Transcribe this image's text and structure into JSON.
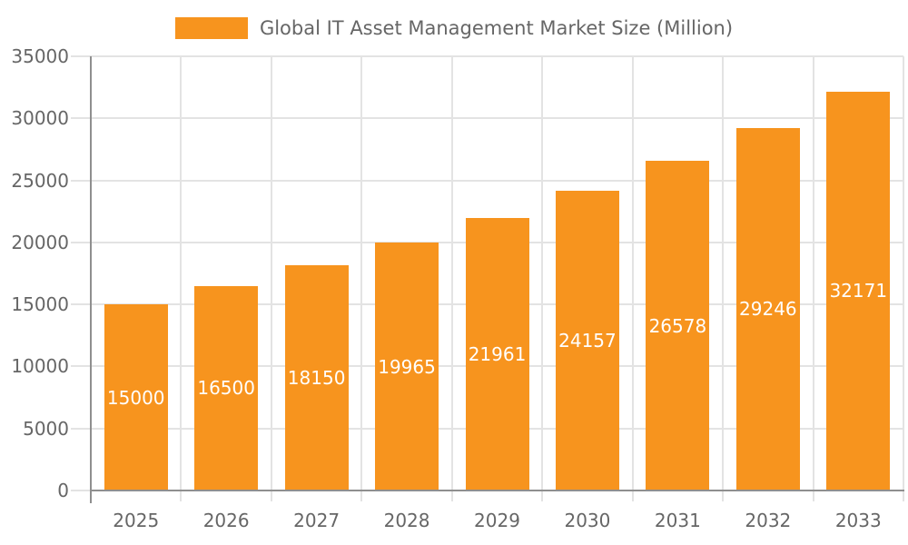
{
  "legend": {
    "position": "top",
    "items": [
      {
        "label": "Global IT Asset Management Market Size (Million)",
        "swatch_color": "#F7941E"
      }
    ]
  },
  "chart_data": {
    "type": "bar",
    "title": "",
    "xlabel": "",
    "ylabel": "",
    "categories": [
      "2025",
      "2026",
      "2027",
      "2028",
      "2029",
      "2030",
      "2031",
      "2032",
      "2033"
    ],
    "series": [
      {
        "name": "Global IT Asset Management Market Size (Million)",
        "values": [
          15000,
          16500,
          18150,
          19965,
          21961,
          24157,
          26578,
          29246,
          32171
        ]
      }
    ],
    "data_labels_visible": true,
    "ylim": [
      0,
      35000
    ],
    "ytick_step": 5000,
    "yticks": [
      0,
      5000,
      10000,
      15000,
      20000,
      25000,
      30000,
      35000
    ],
    "grid": true,
    "legend_position": "top",
    "bar_color": "#F7941E",
    "data_label_color": "#FFFFFF",
    "axis_text_color": "#666666",
    "gridline_color": "#E3E3E3",
    "axis_line_color": "#8F8F8F",
    "background_color": "#FFFFFF"
  }
}
